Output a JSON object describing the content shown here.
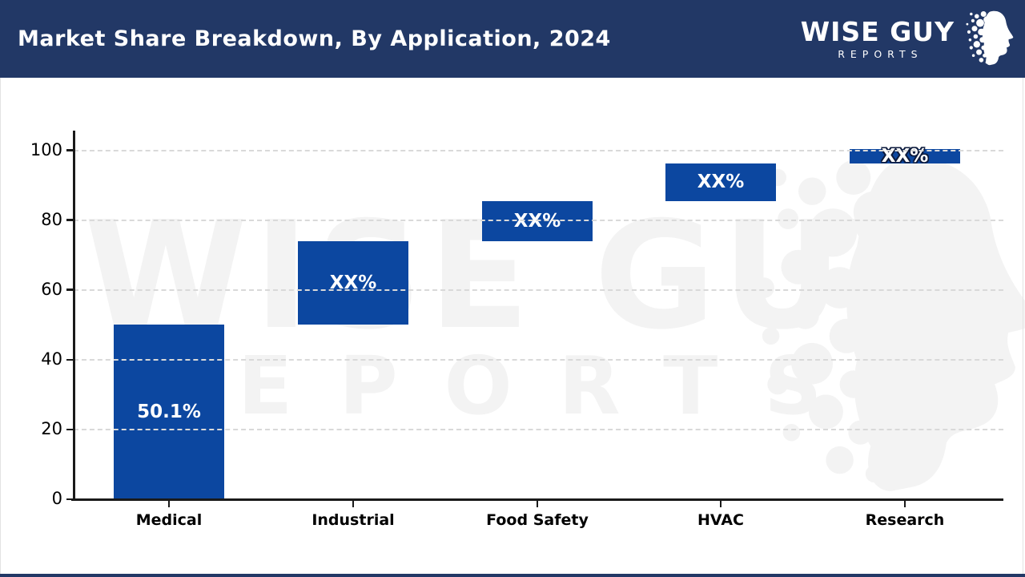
{
  "header": {
    "title": "Market Share Breakdown, By Application, 2024",
    "logo": {
      "line1": "WISE GUY",
      "line2": "REPORTS"
    }
  },
  "watermark": {
    "line1": "WISE GUY",
    "line2": "REPORTS"
  },
  "footer": {},
  "chart_data": {
    "type": "bar",
    "subtype": "waterfall-breakdown",
    "title": "Market Share Breakdown, By Application, 2024",
    "categories": [
      "Medical",
      "Industrial",
      "Food Safety",
      "HVAC",
      "Research"
    ],
    "bars": [
      {
        "category": "Medical",
        "start": 0,
        "end": 50.1,
        "label": "50.1%"
      },
      {
        "category": "Industrial",
        "start": 50.1,
        "end": 74.0,
        "label": "XX%"
      },
      {
        "category": "Food Safety",
        "start": 74.0,
        "end": 85.5,
        "label": "XX%"
      },
      {
        "category": "HVAC",
        "start": 85.5,
        "end": 96.3,
        "label": "XX%"
      },
      {
        "category": "Research",
        "start": 96.3,
        "end": 100.3,
        "label": "XX%"
      }
    ],
    "yticks": [
      0,
      20,
      40,
      60,
      80,
      100
    ],
    "ylim": [
      0,
      105
    ],
    "xlabel": "",
    "ylabel": "",
    "grid": "dashed-horizontal",
    "legend": "none",
    "bar_color": "#0c47a0",
    "bar_label_color": "#ffffff",
    "grid_color": "#d9d9d9",
    "axis_color": "#1a1a1a",
    "header_bg_color": "#223866"
  }
}
